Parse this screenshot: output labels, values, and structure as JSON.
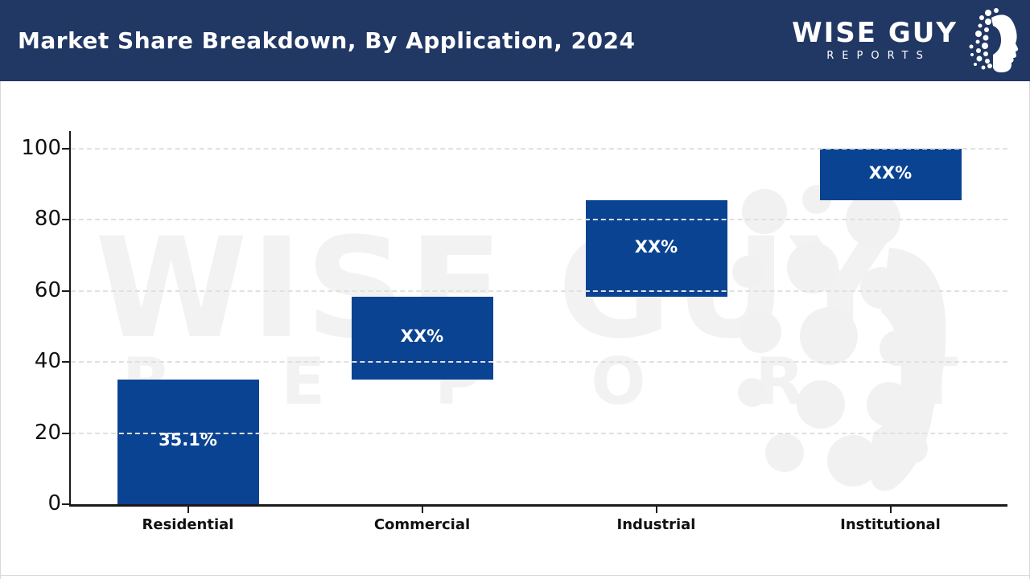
{
  "header": {
    "title": "Market Share Breakdown, By Application, 2024",
    "logo": {
      "line1": "WISE GUY",
      "line2": "REPORTS"
    }
  },
  "watermark": {
    "line1": "WISE GUY",
    "line2": "REPORTS"
  },
  "colors": {
    "header_bg": "#213764",
    "bar": "#0a4392",
    "bar_label": "#ffffff",
    "gridline": "#e0e0e0",
    "axis": "#1a1a1a",
    "watermark": "#f2f2f2"
  },
  "chart_data": {
    "type": "bar",
    "subtype": "waterfall",
    "title": "Market Share Breakdown, By Application, 2024",
    "xlabel": "",
    "ylabel": "",
    "categories": [
      "Residential",
      "Commercial",
      "Industrial",
      "Institutional"
    ],
    "segments": [
      {
        "category": "Residential",
        "start": 0,
        "end": 35.1,
        "label": "35.1%"
      },
      {
        "category": "Commercial",
        "start": 35.1,
        "end": 58.4,
        "label": "XX%"
      },
      {
        "category": "Industrial",
        "start": 58.4,
        "end": 85.5,
        "label": "XX%"
      },
      {
        "category": "Institutional",
        "start": 85.5,
        "end": 100,
        "label": "XX%"
      }
    ],
    "ylim": [
      0,
      105
    ],
    "yticks": [
      0,
      20,
      40,
      60,
      80,
      100
    ],
    "grid": "horizontal-dashed",
    "legend": "none"
  }
}
